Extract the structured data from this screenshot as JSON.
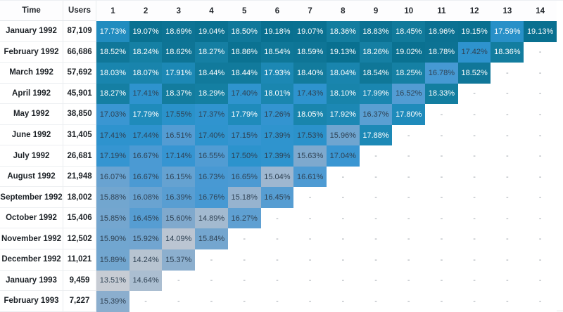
{
  "chart_data": {
    "type": "heatmap",
    "columns": [
      "Time",
      "Users",
      "1",
      "2",
      "3",
      "4",
      "5",
      "6",
      "7",
      "8",
      "9",
      "10",
      "11",
      "12",
      "13",
      "14"
    ],
    "empty_marker": "-",
    "value_suffix": "%",
    "rows": [
      {
        "time": "January 1992",
        "users": "87,109",
        "values": [
          17.73,
          19.07,
          18.69,
          19.04,
          18.5,
          19.18,
          19.07,
          18.36,
          18.83,
          18.45,
          18.96,
          19.15,
          17.59,
          19.13
        ]
      },
      {
        "time": "February 1992",
        "users": "66,686",
        "values": [
          18.52,
          18.24,
          18.62,
          18.27,
          18.86,
          18.54,
          18.59,
          19.13,
          18.26,
          19.02,
          18.78,
          17.42,
          18.36,
          null
        ]
      },
      {
        "time": "March 1992",
        "users": "57,692",
        "values": [
          18.03,
          18.07,
          17.91,
          18.44,
          18.44,
          17.93,
          18.4,
          18.04,
          18.54,
          18.25,
          16.78,
          18.52,
          null,
          null
        ]
      },
      {
        "time": "April 1992",
        "users": "45,901",
        "values": [
          18.27,
          17.41,
          18.37,
          18.29,
          17.4,
          18.01,
          17.43,
          18.1,
          17.99,
          16.52,
          18.33,
          null,
          null,
          null
        ]
      },
      {
        "time": "May 1992",
        "users": "38,850",
        "values": [
          17.03,
          17.79,
          17.55,
          17.37,
          17.79,
          17.26,
          18.05,
          17.92,
          16.37,
          17.8,
          null,
          null,
          null,
          null
        ]
      },
      {
        "time": "June 1992",
        "users": "31,405",
        "values": [
          17.41,
          17.44,
          16.51,
          17.4,
          17.15,
          17.39,
          17.53,
          15.96,
          17.88,
          null,
          null,
          null,
          null,
          null
        ]
      },
      {
        "time": "July 1992",
        "users": "26,681",
        "values": [
          17.19,
          16.67,
          17.14,
          16.55,
          17.5,
          17.39,
          15.63,
          17.04,
          null,
          null,
          null,
          null,
          null,
          null
        ]
      },
      {
        "time": "August 1992",
        "users": "21,948",
        "values": [
          16.07,
          16.67,
          16.15,
          16.73,
          16.65,
          15.04,
          16.61,
          null,
          null,
          null,
          null,
          null,
          null,
          null
        ]
      },
      {
        "time": "September 1992",
        "users": "18,002",
        "values": [
          15.88,
          16.08,
          16.39,
          16.76,
          15.18,
          16.45,
          null,
          null,
          null,
          null,
          null,
          null,
          null,
          null
        ]
      },
      {
        "time": "October 1992",
        "users": "15,406",
        "values": [
          15.85,
          16.45,
          15.6,
          14.89,
          16.27,
          null,
          null,
          null,
          null,
          null,
          null,
          null,
          null,
          null
        ]
      },
      {
        "time": "November 1992",
        "users": "12,502",
        "values": [
          15.9,
          15.92,
          14.09,
          15.84,
          null,
          null,
          null,
          null,
          null,
          null,
          null,
          null,
          null,
          null
        ]
      },
      {
        "time": "December 1992",
        "users": "11,021",
        "values": [
          15.89,
          14.24,
          15.37,
          null,
          null,
          null,
          null,
          null,
          null,
          null,
          null,
          null,
          null,
          null
        ]
      },
      {
        "time": "January 1993",
        "users": "9,459",
        "values": [
          13.51,
          14.64,
          null,
          null,
          null,
          null,
          null,
          null,
          null,
          null,
          null,
          null,
          null,
          null
        ]
      },
      {
        "time": "February 1993",
        "users": "7,227",
        "values": [
          15.39,
          null,
          null,
          null,
          null,
          null,
          null,
          null,
          null,
          null,
          null,
          null,
          null,
          null
        ]
      }
    ],
    "color_scale": {
      "stops": [
        [
          13.51,
          "#c7ccd4"
        ],
        [
          14.3,
          "#b6c3d1"
        ],
        [
          15.0,
          "#a0b8d0"
        ],
        [
          15.55,
          "#82aacd"
        ],
        [
          16.1,
          "#68a3d1"
        ],
        [
          16.6,
          "#4e9bd3"
        ],
        [
          17.1,
          "#3795d2"
        ],
        [
          17.5,
          "#2c93cd"
        ],
        [
          17.78,
          "#1f8bbc"
        ],
        [
          18.05,
          "#1985ad"
        ],
        [
          18.35,
          "#137d9f"
        ],
        [
          18.65,
          "#0d7394"
        ],
        [
          19.18,
          "#097090"
        ]
      ],
      "white_text_min": 17.56
    },
    "text_colors": {
      "on_dark": "#ffffff",
      "on_light": "#2f4254",
      "empty": "#99a1a8"
    },
    "layout": {
      "time_col_width": 90,
      "users_col_width": 47,
      "value_col_width": 46.7
    }
  }
}
